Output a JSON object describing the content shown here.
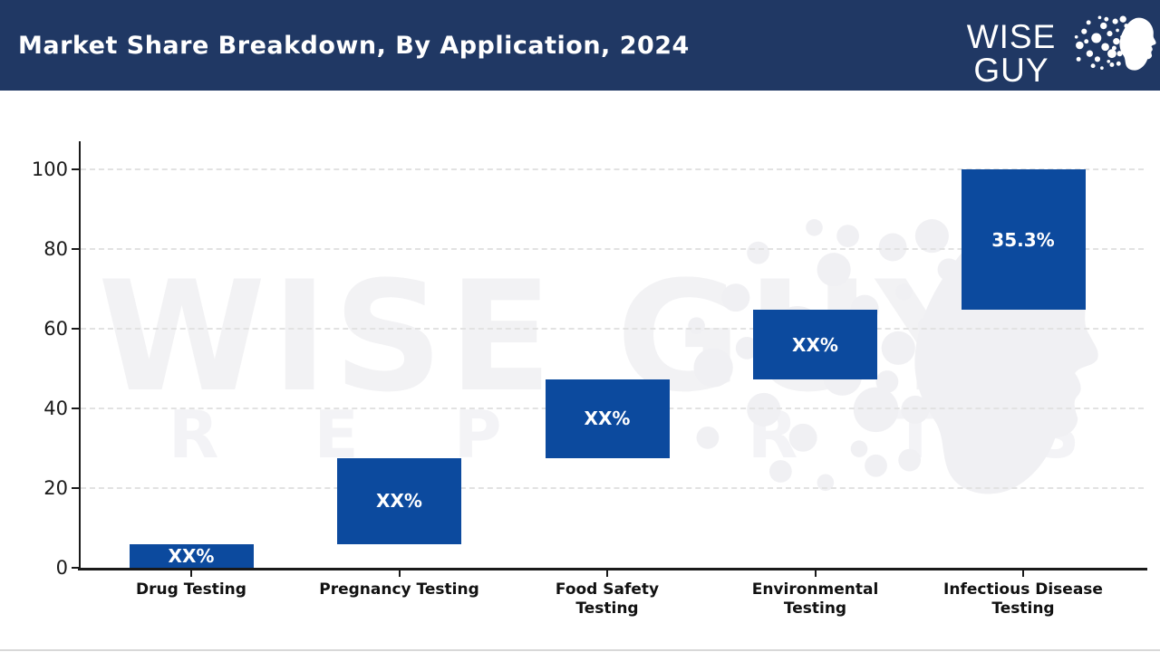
{
  "header": {
    "title": "Market Share Breakdown, By Application, 2024",
    "bg_color": "#203864",
    "logo": {
      "line1": "WISE GUY",
      "line2": "R E P O R T S"
    }
  },
  "watermark": {
    "line1": "WISE GUY",
    "line2": "R E P O R T S"
  },
  "chart_data": {
    "type": "bar",
    "subtype": "waterfall",
    "title": "Market Share Breakdown, By Application, 2024",
    "xlabel": "",
    "ylabel": "",
    "ylim": [
      0,
      107
    ],
    "yticks": [
      0,
      20,
      40,
      60,
      80,
      100
    ],
    "grid": "horizontal-dashed",
    "legend": "none",
    "bar_color": "#0c4a9e",
    "label_color": "#ffffff",
    "categories": [
      "Drug Testing",
      "Pregnancy Testing",
      "Food Safety\nTesting",
      "Environmental\nTesting",
      "Infectious Disease\nTesting"
    ],
    "segments": [
      {
        "category": "Drug Testing",
        "start": 0,
        "end": 6,
        "label": "XX%"
      },
      {
        "category": "Pregnancy Testing",
        "start": 6,
        "end": 27.5,
        "label": "XX%"
      },
      {
        "category": "Food Safety\nTesting",
        "start": 27.5,
        "end": 47.3,
        "label": "XX%"
      },
      {
        "category": "Environmental\nTesting",
        "start": 47.3,
        "end": 64.7,
        "label": "XX%"
      },
      {
        "category": "Infectious Disease\nTesting",
        "start": 64.7,
        "end": 100,
        "label": "35.3%"
      }
    ]
  }
}
